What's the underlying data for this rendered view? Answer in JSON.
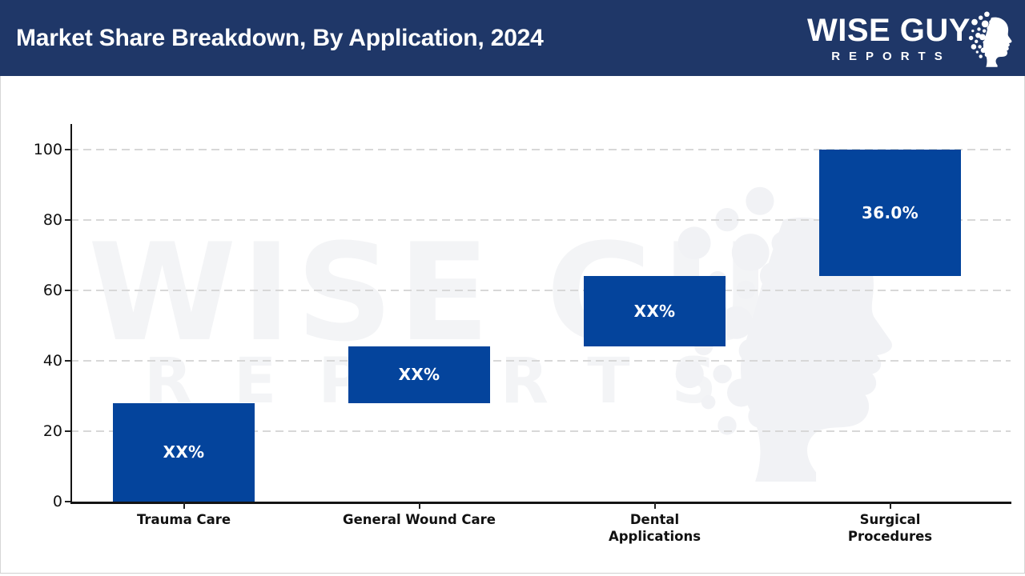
{
  "header": {
    "title": "Market Share Breakdown, By Application, 2024",
    "logo": {
      "name": "WISE GUY",
      "tagline": "REPORTS"
    }
  },
  "watermark": {
    "line1": "WISE GUY",
    "line2": "REPORTS"
  },
  "colors": {
    "header_bg": "#1f3768",
    "bar": "#04449c",
    "grid": "#d8d8d8",
    "axis": "#141414",
    "watermark": "#f3f4f6",
    "bar_label_text": "#ffffff"
  },
  "chart_data": {
    "type": "bar",
    "subtype": "floating-waterfall",
    "title": "Market Share Breakdown, By Application, 2024",
    "categories": [
      "Trauma Care",
      "General Wound Care",
      "Dental Applications",
      "Surgical Procedures"
    ],
    "segments": [
      {
        "category": "Trauma Care",
        "display": "Trauma Care",
        "start": 0,
        "end": 28,
        "label": "XX%"
      },
      {
        "category": "General Wound Care",
        "display": "General Wound Care",
        "start": 28,
        "end": 44,
        "label": "XX%"
      },
      {
        "category": "Dental Applications",
        "display": "Dental\nApplications",
        "start": 44,
        "end": 64,
        "label": "XX%"
      },
      {
        "category": "Surgical Procedures",
        "display": "Surgical\nProcedures",
        "start": 64,
        "end": 100,
        "label": "36.0%"
      }
    ],
    "ylim": [
      0,
      100
    ],
    "yticks": [
      0,
      20,
      40,
      60,
      80,
      100
    ],
    "grid": "horizontal-dashed",
    "legend": "none"
  }
}
